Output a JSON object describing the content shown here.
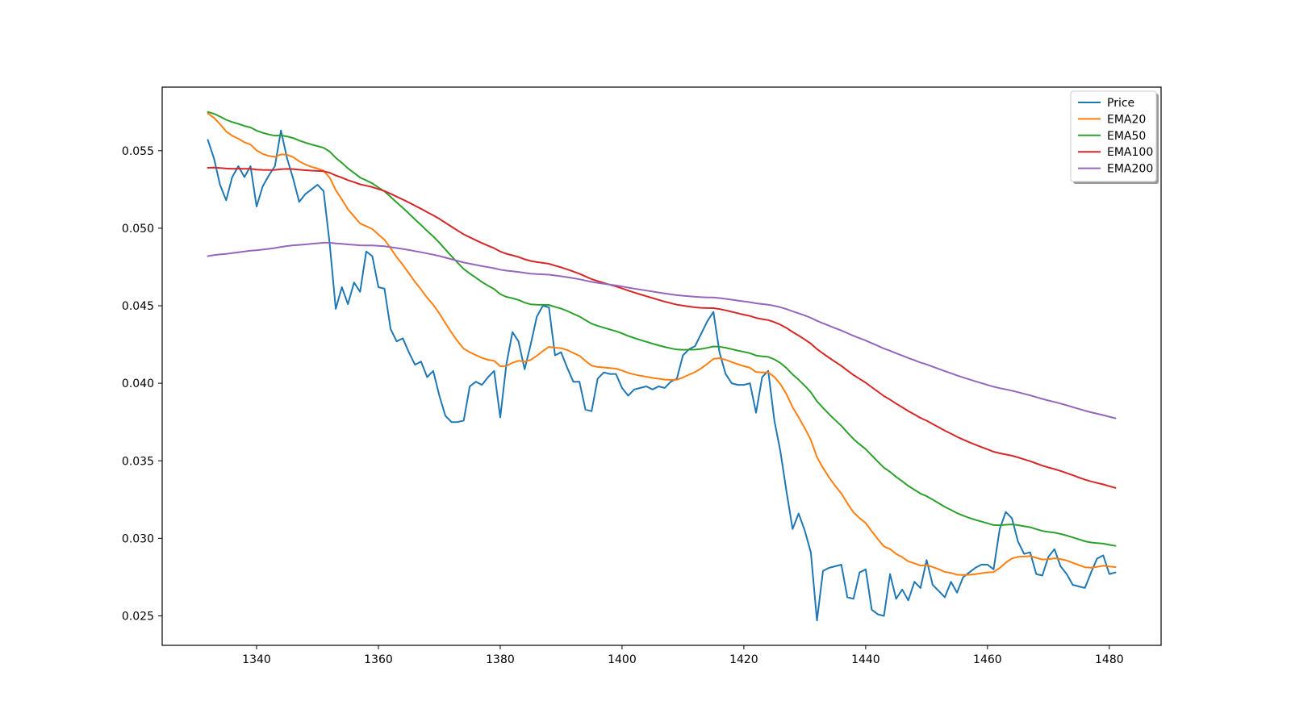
{
  "figure": {
    "background": "#ffffff",
    "axis_color": "#000000",
    "legend_border_color": "#cccccc",
    "legend_shadow_color": "#999999"
  },
  "chart_data": {
    "type": "line",
    "title": "",
    "xlabel": "",
    "ylabel": "",
    "grid": false,
    "x_start": 1332,
    "x_step": 1,
    "xlim": [
      1324.5,
      1488.5
    ],
    "ylim": [
      0.0231,
      0.0591
    ],
    "xticks": [
      1340,
      1360,
      1380,
      1400,
      1420,
      1440,
      1460,
      1480
    ],
    "yticks": [
      0.025,
      0.03,
      0.035,
      0.04,
      0.045,
      0.05,
      0.055
    ],
    "ytick_labels": [
      "0.025",
      "0.030",
      "0.035",
      "0.040",
      "0.045",
      "0.050",
      "0.055"
    ],
    "legend": {
      "position": "upper-right",
      "entries": [
        "Price",
        "EMA20",
        "EMA50",
        "EMA100",
        "EMA200"
      ]
    },
    "series": [
      {
        "name": "Price",
        "kind": "price",
        "color": "#1f77b4",
        "values": [
          0.0557,
          0.0545,
          0.0528,
          0.0518,
          0.0533,
          0.054,
          0.0533,
          0.054,
          0.0514,
          0.0527,
          0.0534,
          0.054,
          0.0563,
          0.0545,
          0.0532,
          0.0517,
          0.0522,
          0.0525,
          0.0528,
          0.0524,
          0.049,
          0.0448,
          0.0462,
          0.0451,
          0.0465,
          0.0459,
          0.0485,
          0.0482,
          0.0462,
          0.0461,
          0.0435,
          0.0427,
          0.0429,
          0.042,
          0.0412,
          0.0414,
          0.0404,
          0.0408,
          0.0392,
          0.0379,
          0.0375,
          0.0375,
          0.0376,
          0.0398,
          0.0401,
          0.0399,
          0.0404,
          0.0408,
          0.0378,
          0.0412,
          0.0433,
          0.0427,
          0.0409,
          0.0425,
          0.0443,
          0.045,
          0.0449,
          0.0418,
          0.042,
          0.041,
          0.0401,
          0.0401,
          0.0383,
          0.0382,
          0.0403,
          0.0407,
          0.0406,
          0.0406,
          0.0397,
          0.0392,
          0.0396,
          0.0397,
          0.0398,
          0.0396,
          0.0398,
          0.0397,
          0.0401,
          0.0403,
          0.0418,
          0.0422,
          0.0424,
          0.0432,
          0.044,
          0.0446,
          0.042,
          0.0406,
          0.04,
          0.0399,
          0.0399,
          0.04,
          0.0381,
          0.0404,
          0.0408,
          0.0376,
          0.0356,
          0.033,
          0.0306,
          0.0316,
          0.0305,
          0.0291,
          0.0247,
          0.0279,
          0.0281,
          0.0282,
          0.0283,
          0.0262,
          0.0261,
          0.0278,
          0.028,
          0.0254,
          0.0251,
          0.025,
          0.0277,
          0.0261,
          0.0267,
          0.026,
          0.0272,
          0.0268,
          0.0286,
          0.027,
          0.0266,
          0.0262,
          0.0272,
          0.0265,
          0.0275,
          0.0278,
          0.0281,
          0.0283,
          0.0283,
          0.028,
          0.0306,
          0.0317,
          0.0313,
          0.0298,
          0.029,
          0.0291,
          0.0277,
          0.0276,
          0.0288,
          0.0293,
          0.0282,
          0.0277,
          0.027,
          0.0269,
          0.0268,
          0.0278,
          0.0287,
          0.0289,
          0.0277,
          0.0278
        ]
      },
      {
        "name": "EMA20",
        "kind": "ema",
        "span": 20,
        "seed": 0.0574,
        "color": "#ff7f0e"
      },
      {
        "name": "EMA50",
        "kind": "ema",
        "span": 50,
        "seed": 0.0575,
        "color": "#2ca02c"
      },
      {
        "name": "EMA100",
        "kind": "ema",
        "span": 100,
        "seed": 0.0539,
        "color": "#d62728"
      },
      {
        "name": "EMA200",
        "kind": "ema",
        "span": 200,
        "seed": 0.0482,
        "color": "#9467bd"
      }
    ]
  }
}
